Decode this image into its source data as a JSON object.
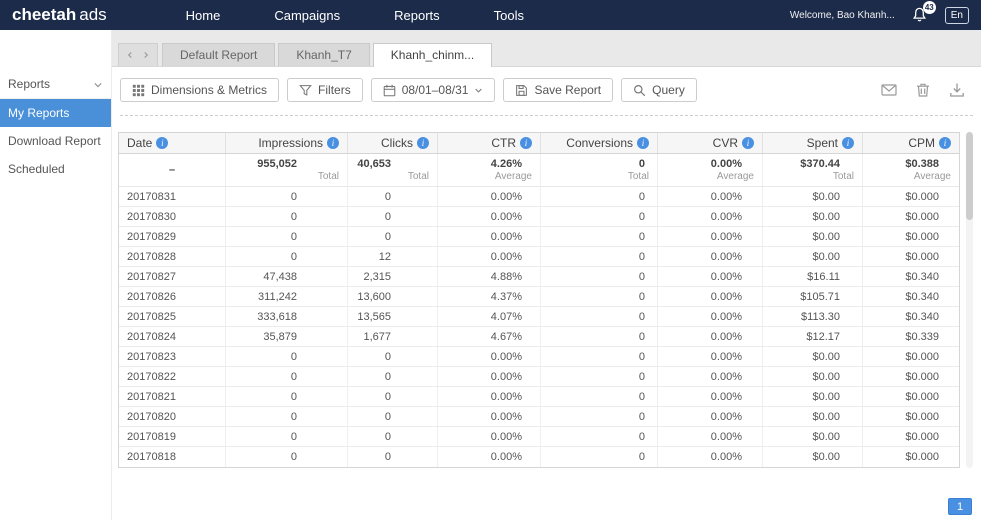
{
  "navbar": {
    "logo": {
      "bold": "cheetah",
      "light": "ads"
    },
    "items": [
      "Home",
      "Campaigns",
      "Reports",
      "Tools"
    ],
    "welcome": "Welcome,  Bao Khanh...",
    "notification_count": "43",
    "language": "En"
  },
  "sidebar": {
    "group": "Reports",
    "items": [
      {
        "label": "My Reports",
        "active": true
      },
      {
        "label": "Download Report",
        "active": false
      },
      {
        "label": "Scheduled",
        "active": false
      }
    ]
  },
  "tabs": [
    {
      "label": "Default Report",
      "active": false
    },
    {
      "label": "Khanh_T7",
      "active": false
    },
    {
      "label": "Khanh_chinm...",
      "active": true
    }
  ],
  "toolbar": {
    "dimensions_metrics_label": "Dimensions & Metrics",
    "filters_label": "Filters",
    "date_range_label": "08/01–08/31",
    "save_report_label": "Save Report",
    "query_label": "Query"
  },
  "table": {
    "columns": [
      "Date",
      "Impressions",
      "Clicks",
      "CTR",
      "Conversions",
      "CVR",
      "Spent",
      "CPM"
    ],
    "totals": {
      "date": "–",
      "values": [
        [
          "955,052",
          "Total"
        ],
        [
          "40,653",
          "Total"
        ],
        [
          "4.26%",
          "Average"
        ],
        [
          "0",
          "Total"
        ],
        [
          "0.00%",
          "Average"
        ],
        [
          "$370.44",
          "Total"
        ],
        [
          "$0.388",
          "Average"
        ]
      ]
    },
    "rows": [
      [
        "20170831",
        "0",
        "0",
        "0.00%",
        "0",
        "0.00%",
        "$0.00",
        "$0.000"
      ],
      [
        "20170830",
        "0",
        "0",
        "0.00%",
        "0",
        "0.00%",
        "$0.00",
        "$0.000"
      ],
      [
        "20170829",
        "0",
        "0",
        "0.00%",
        "0",
        "0.00%",
        "$0.00",
        "$0.000"
      ],
      [
        "20170828",
        "0",
        "12",
        "0.00%",
        "0",
        "0.00%",
        "$0.00",
        "$0.000"
      ],
      [
        "20170827",
        "47,438",
        "2,315",
        "4.88%",
        "0",
        "0.00%",
        "$16.11",
        "$0.340"
      ],
      [
        "20170826",
        "311,242",
        "13,600",
        "4.37%",
        "0",
        "0.00%",
        "$105.71",
        "$0.340"
      ],
      [
        "20170825",
        "333,618",
        "13,565",
        "4.07%",
        "0",
        "0.00%",
        "$113.30",
        "$0.340"
      ],
      [
        "20170824",
        "35,879",
        "1,677",
        "4.67%",
        "0",
        "0.00%",
        "$12.17",
        "$0.339"
      ],
      [
        "20170823",
        "0",
        "0",
        "0.00%",
        "0",
        "0.00%",
        "$0.00",
        "$0.000"
      ],
      [
        "20170822",
        "0",
        "0",
        "0.00%",
        "0",
        "0.00%",
        "$0.00",
        "$0.000"
      ],
      [
        "20170821",
        "0",
        "0",
        "0.00%",
        "0",
        "0.00%",
        "$0.00",
        "$0.000"
      ],
      [
        "20170820",
        "0",
        "0",
        "0.00%",
        "0",
        "0.00%",
        "$0.00",
        "$0.000"
      ],
      [
        "20170819",
        "0",
        "0",
        "0.00%",
        "0",
        "0.00%",
        "$0.00",
        "$0.000"
      ],
      [
        "20170818",
        "0",
        "0",
        "0.00%",
        "0",
        "0.00%",
        "$0.00",
        "$0.000"
      ]
    ]
  },
  "pagination": {
    "current_page": "1"
  }
}
